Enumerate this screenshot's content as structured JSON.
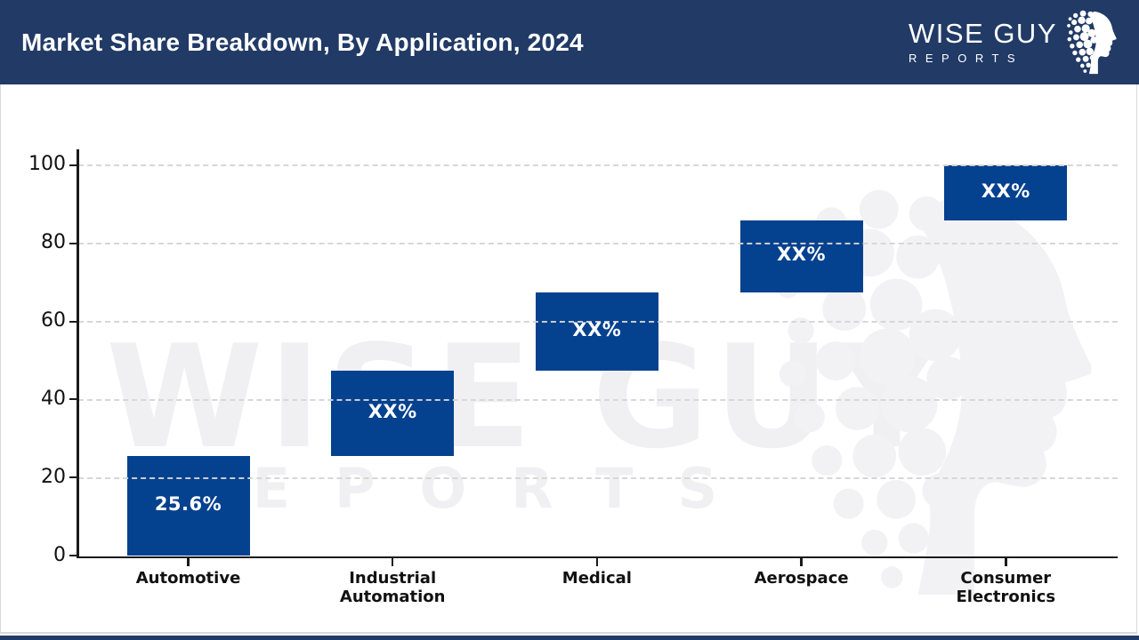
{
  "header": {
    "title": "Market Share Breakdown, By Application, 2024",
    "bg_color": "#213a66",
    "logo": {
      "line1": "WISE GUY",
      "line2": "REPORTS",
      "icon": "dotted-head-icon"
    }
  },
  "watermark": {
    "line1": "WISE GUY",
    "line2": "REPORTS"
  },
  "footer": {
    "bg_color": "#213a66"
  },
  "chart_data": {
    "type": "bar",
    "variant": "waterfall",
    "title": "Market Share Breakdown, By Application, 2024",
    "categories": [
      "Automotive",
      "Industrial Automation",
      "Medical",
      "Aerospace",
      "Consumer Electronics"
    ],
    "segments": [
      {
        "category": "Automotive",
        "start": 0,
        "end": 25.6,
        "label": "25.6%"
      },
      {
        "category": "Industrial Automation",
        "start": 25.6,
        "end": 47.5,
        "label": "XX%"
      },
      {
        "category": "Medical",
        "start": 47.5,
        "end": 67.5,
        "label": "XX%"
      },
      {
        "category": "Aerospace",
        "start": 67.5,
        "end": 86,
        "label": "XX%"
      },
      {
        "category": "Consumer Electronics",
        "start": 86,
        "end": 100,
        "label": "XX%"
      }
    ],
    "xlabel": "",
    "ylabel": "",
    "ylim": [
      0,
      100
    ],
    "yticks": [
      0,
      20,
      40,
      60,
      80,
      100
    ],
    "grid": "horizontal-dashed",
    "legend": "none",
    "bar_color": "#04418f",
    "bar_label_color": "#ffffff",
    "axis_color": "#1a1a1a",
    "gridline_color": "#d5d5d5"
  }
}
